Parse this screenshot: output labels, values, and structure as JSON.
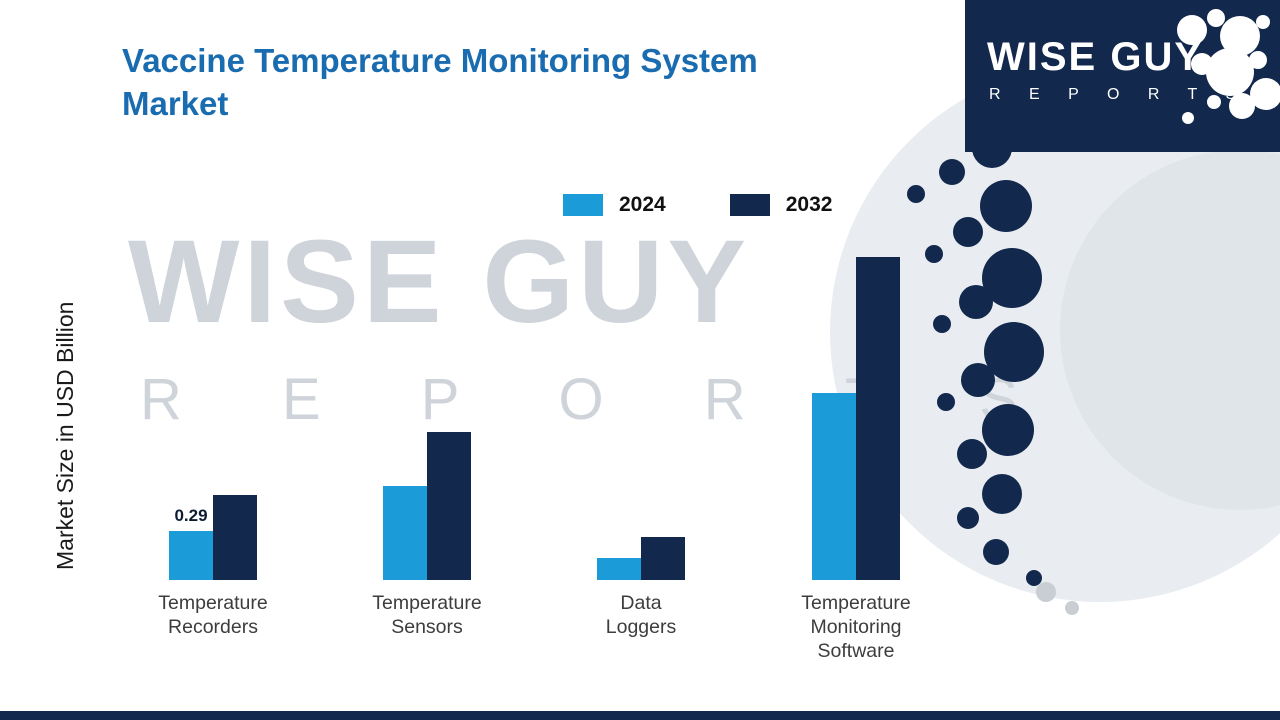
{
  "page": {
    "title": "Vaccine Temperature Monitoring System Market",
    "ylabel": "Market Size in USD Billion"
  },
  "logo": {
    "line1": "WISE GUY",
    "line2": "R E P O R T S"
  },
  "watermark": {
    "line1": "WISE GUY",
    "line2": "R E P O R T S"
  },
  "colors": {
    "accent_blue": "#1b9bd8",
    "navy": "#12284c",
    "title_blue": "#1a6cb0",
    "watermark_gray": "#cfd4da",
    "circle_gray": "#e9edf1"
  },
  "chart_data": {
    "type": "bar",
    "title": "Vaccine Temperature Monitoring System Market",
    "categories": [
      "Temperature\nRecorders",
      "Temperature\nSensors",
      "Data\nLoggers",
      "Temperature\nMonitoring\nSoftware"
    ],
    "series": [
      {
        "name": "2024",
        "color": "#1b9bd8",
        "values": [
          0.29,
          0.55,
          0.13,
          1.1
        ]
      },
      {
        "name": "2032",
        "color": "#12284c",
        "values": [
          0.5,
          0.87,
          0.25,
          1.9
        ]
      }
    ],
    "xlabel": "",
    "ylabel": "Market Size in USD Billion",
    "ylim": [
      0,
      2.0
    ],
    "grid": false,
    "legend_position": "top",
    "annotations": [
      {
        "category_index": 0,
        "series_index": 0,
        "text": "0.29"
      }
    ]
  }
}
